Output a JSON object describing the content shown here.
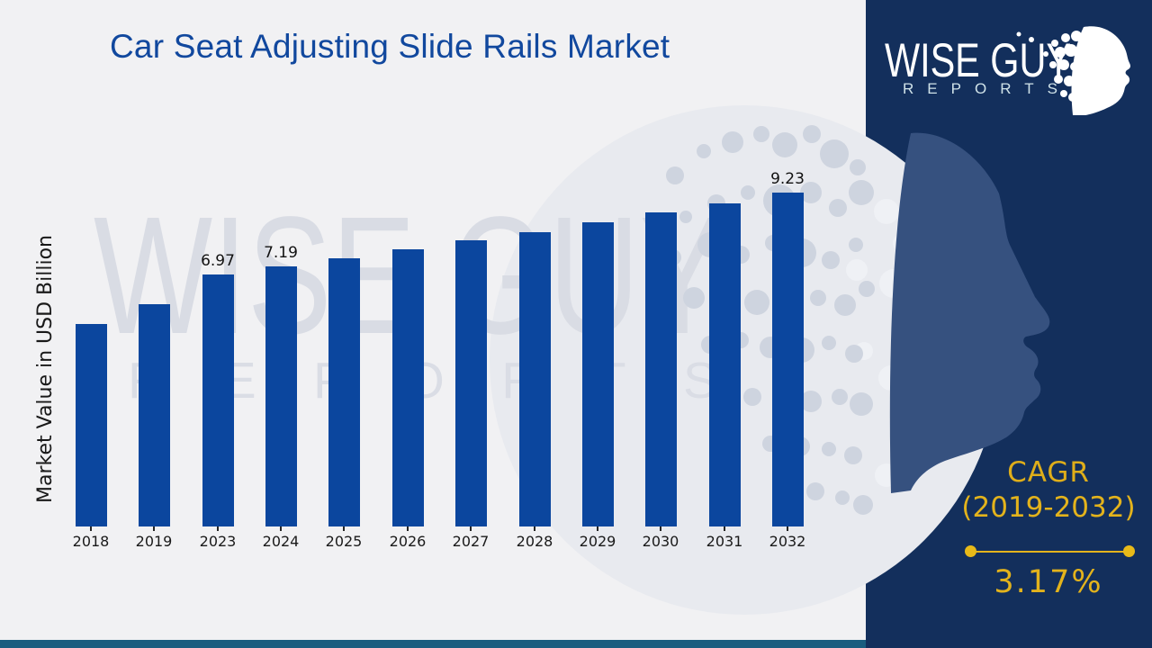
{
  "title": "Car Seat Adjusting Slide Rails Market",
  "watermark": {
    "line1": "WISE GUY",
    "line2": "REPORTS"
  },
  "logo": {
    "line1": "WISE GUY",
    "line2": "REPORTS"
  },
  "cagr": {
    "heading": "CAGR",
    "range": "(2019-2032)",
    "value": "3.17%"
  },
  "colors": {
    "bar": "#0b469e",
    "title_blue": "#11489e",
    "navy_panel": "#132f5c",
    "gold": "#e3b31c",
    "teal_strip": "#1a5d7f",
    "watermark_gray": "#d9dce4",
    "circle_light": "#e8eaef",
    "face_blue": "#36517f"
  },
  "chart_data": {
    "type": "bar",
    "title": "Car Seat Adjusting Slide Rails Market",
    "xlabel": "",
    "ylabel": "Market Value in USD Billion",
    "categories": [
      "2018",
      "2019",
      "2023",
      "2024",
      "2025",
      "2026",
      "2027",
      "2028",
      "2029",
      "2030",
      "2031",
      "2032"
    ],
    "values": [
      5.6,
      6.15,
      6.97,
      7.19,
      7.42,
      7.65,
      7.9,
      8.14,
      8.4,
      8.67,
      8.94,
      9.23
    ],
    "point_labels": [
      "",
      "",
      "6.97",
      "7.19",
      "",
      "",
      "",
      "",
      "",
      "",
      "",
      "9.23"
    ],
    "ylim": [
      0,
      10
    ],
    "yticks_visible": false,
    "grid": false,
    "legend": null,
    "bar_color": "#0b469e",
    "cagr_percent": 3.17,
    "cagr_period": "2019-2032"
  }
}
